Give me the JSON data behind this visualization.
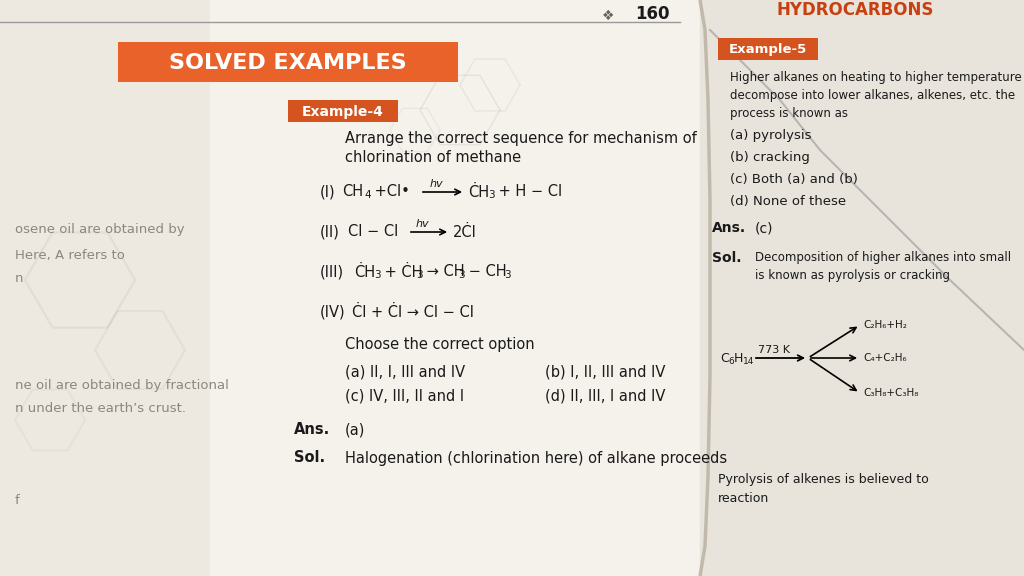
{
  "page_bg": "#f0ece4",
  "center_bg": "#f5f2ec",
  "left_bg": "#ede9e0",
  "right_bg": "#e8e4dc",
  "title_box_color": "#e8622a",
  "title_text": "SOLVED EXAMPLES",
  "title_text_color": "#ffffff",
  "example_box_color": "#d4531e",
  "example_label": "Example-4",
  "example_label_color": "#ffffff",
  "right_header": "HYDROCARBONS",
  "right_header_color": "#c84010",
  "page_number": "160",
  "example5_label": "Example-5",
  "example5_box_color": "#d4531e",
  "right_text_lines": [
    "Higher alkanes on heating to higher temperature",
    "decompose into lower alkanes, alkenes, etc. the",
    "process is known as"
  ],
  "right_options": [
    "(a) pyrolysis",
    "(b) cracking",
    "(c) Both (a) and (b)",
    "(d) None of these"
  ],
  "right_ans_label": "Ans.",
  "right_ans_text": "(c)",
  "right_sol_label": "Sol.",
  "right_sol_lines": [
    "Decomposition of higher alkanes into small",
    "is known as pyrolysis or cracking"
  ],
  "pyrolysis_line1": "Pyrolysis of alkenes is believed to",
  "pyrolysis_line2": "reaction",
  "ans_label": "Ans.",
  "ans_text": "(a)",
  "sol_label": "Sol.",
  "sol_text": "Halogenation (chlorination here) of alkane proceeds",
  "left_texts": [
    [
      15,
      230,
      "osene oil are obtained by"
    ],
    [
      15,
      255,
      "Here, A refers to"
    ],
    [
      15,
      278,
      "n"
    ],
    [
      15,
      385,
      "ne oil are obtained by fractional"
    ],
    [
      15,
      408,
      "n under the earth’s crust."
    ],
    [
      15,
      500,
      "f"
    ]
  ],
  "divider_color": "#999999",
  "text_color": "#1a1a1a",
  "faint_text_color": "#888880",
  "spine_color": "#b0a898"
}
